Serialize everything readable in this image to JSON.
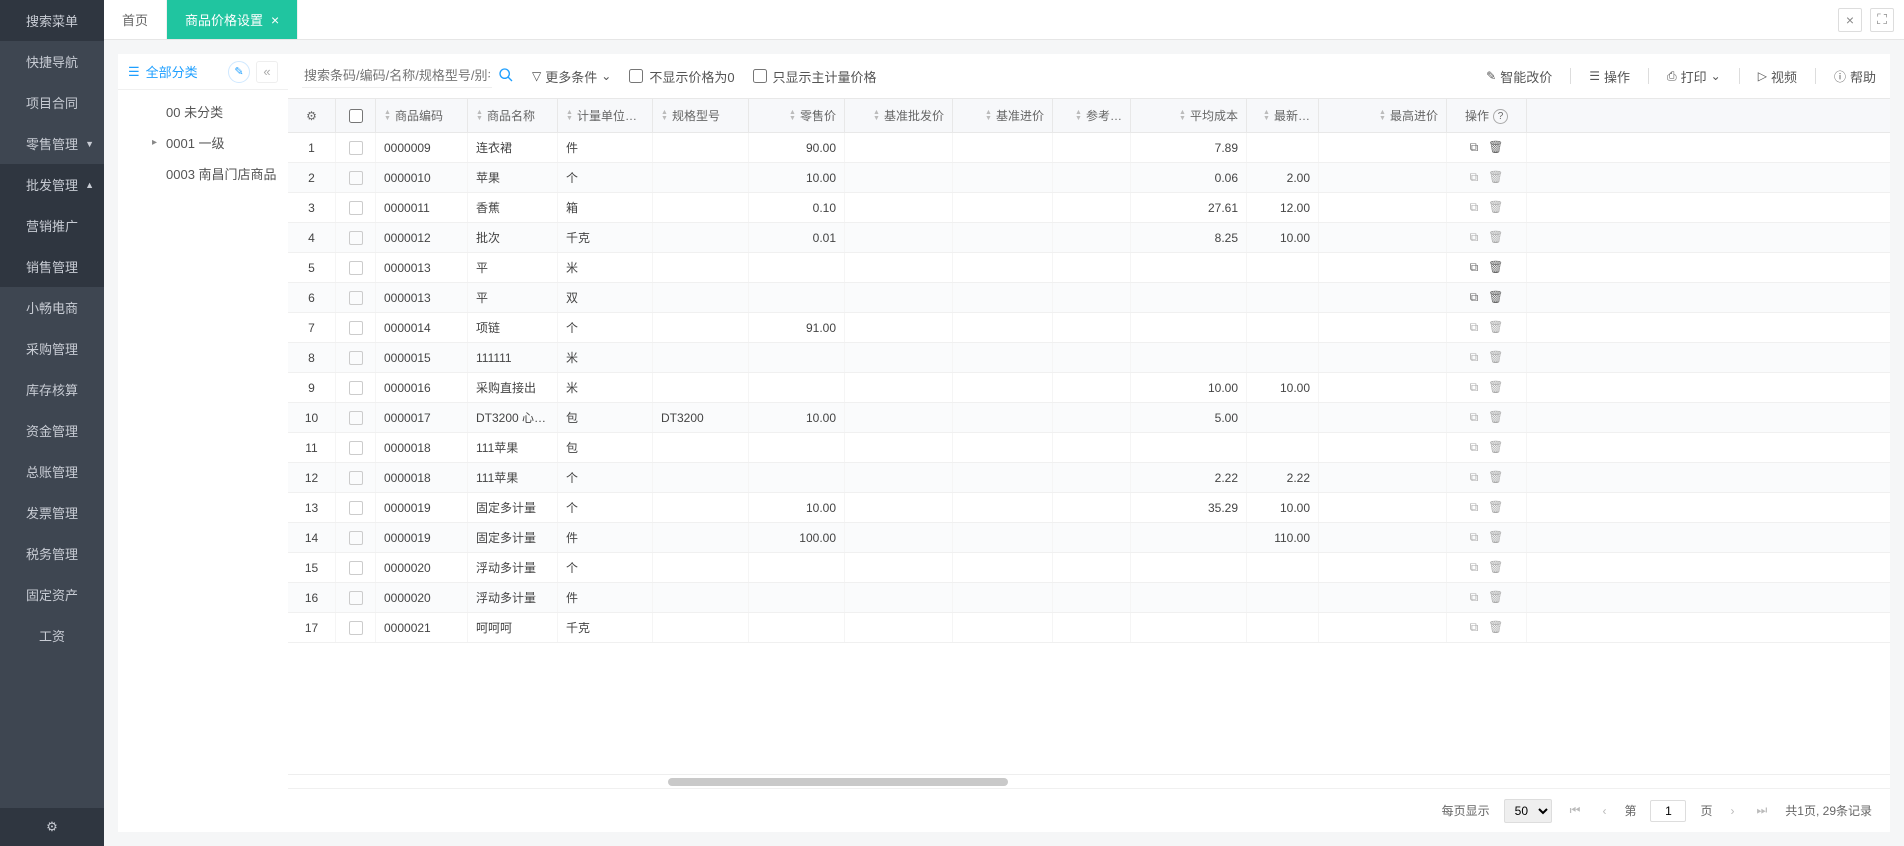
{
  "sidebar": {
    "items": [
      {
        "label": "搜索菜单",
        "arrow": ""
      },
      {
        "label": "快捷导航",
        "arrow": ""
      },
      {
        "label": "项目合同",
        "arrow": ""
      },
      {
        "label": "零售管理",
        "arrow": "▼"
      },
      {
        "label": "批发管理",
        "arrow": "▲",
        "active": true,
        "sub": [
          {
            "label": "营销推广"
          },
          {
            "label": "销售管理"
          }
        ]
      },
      {
        "label": "小畅电商",
        "arrow": ""
      },
      {
        "label": "采购管理",
        "arrow": ""
      },
      {
        "label": "库存核算",
        "arrow": ""
      },
      {
        "label": "资金管理",
        "arrow": ""
      },
      {
        "label": "总账管理",
        "arrow": ""
      },
      {
        "label": "发票管理",
        "arrow": ""
      },
      {
        "label": "税务管理",
        "arrow": ""
      },
      {
        "label": "固定资产",
        "arrow": ""
      },
      {
        "label": "工资",
        "arrow": ""
      }
    ]
  },
  "tabs": {
    "home": "首页",
    "active": "商品价格设置"
  },
  "category": {
    "head": "全部分类",
    "nodes": [
      {
        "label": "00 未分类",
        "level": "root",
        "caret": ""
      },
      {
        "label": "0001 一级",
        "level": "root",
        "caret": "▸"
      },
      {
        "label": "0003 南昌门店商品",
        "level": "root",
        "caret": ""
      }
    ]
  },
  "toolbar": {
    "search_placeholder": "搜索条码/编码/名称/规格型号/别名",
    "more": "更多条件",
    "chk1": "不显示价格为0",
    "chk2": "只显示主计量价格",
    "smart": "智能改价",
    "ops": "操作",
    "print": "打印",
    "video": "视频",
    "help": "帮助"
  },
  "table": {
    "columns": [
      "",
      "",
      "商品编码",
      "商品名称",
      "计量单位…",
      "规格型号",
      "零售价",
      "基准批发价",
      "基准进价",
      "参考…",
      "平均成本",
      "最新…",
      "最高进价",
      "操作"
    ],
    "rows": [
      {
        "n": "1",
        "code": "0000009",
        "name": "连衣裙",
        "unit": "件",
        "spec": "",
        "price": "90.00",
        "whole": "",
        "pur": "",
        "ref": "",
        "avg": "7.89",
        "new": "",
        "max": "",
        "actEnabled": true
      },
      {
        "n": "2",
        "code": "0000010",
        "name": "苹果",
        "unit": "个",
        "spec": "",
        "price": "10.00",
        "whole": "",
        "pur": "",
        "ref": "",
        "avg": "0.06",
        "new": "2.00",
        "max": "",
        "actEnabled": false
      },
      {
        "n": "3",
        "code": "0000011",
        "name": "香蕉",
        "unit": "箱",
        "spec": "",
        "price": "0.10",
        "whole": "",
        "pur": "",
        "ref": "",
        "avg": "27.61",
        "new": "12.00",
        "max": "",
        "actEnabled": false
      },
      {
        "n": "4",
        "code": "0000012",
        "name": "批次",
        "unit": "千克",
        "spec": "",
        "price": "0.01",
        "whole": "",
        "pur": "",
        "ref": "",
        "avg": "8.25",
        "new": "10.00",
        "max": "",
        "actEnabled": false
      },
      {
        "n": "5",
        "code": "0000013",
        "name": "平",
        "unit": "米",
        "spec": "",
        "price": "",
        "whole": "",
        "pur": "",
        "ref": "",
        "avg": "",
        "new": "",
        "max": "",
        "actEnabled": true
      },
      {
        "n": "6",
        "code": "0000013",
        "name": "平",
        "unit": "双",
        "spec": "",
        "price": "",
        "whole": "",
        "pur": "",
        "ref": "",
        "avg": "",
        "new": "",
        "max": "",
        "actEnabled": true
      },
      {
        "n": "7",
        "code": "0000014",
        "name": "项链",
        "unit": "个",
        "spec": "",
        "price": "91.00",
        "whole": "",
        "pur": "",
        "ref": "",
        "avg": "",
        "new": "",
        "max": "",
        "actEnabled": false
      },
      {
        "n": "8",
        "code": "0000015",
        "name": "111111",
        "unit": "米",
        "spec": "",
        "price": "",
        "whole": "",
        "pur": "",
        "ref": "",
        "avg": "",
        "new": "",
        "max": "",
        "actEnabled": false
      },
      {
        "n": "9",
        "code": "0000016",
        "name": "采购直接出",
        "unit": "米",
        "spec": "",
        "price": "",
        "whole": "",
        "pur": "",
        "ref": "",
        "avg": "10.00",
        "new": "10.00",
        "max": "",
        "actEnabled": false
      },
      {
        "n": "10",
        "code": "0000017",
        "name": "DT3200 心…",
        "unit": "包",
        "spec": "DT3200",
        "price": "10.00",
        "whole": "",
        "pur": "",
        "ref": "",
        "avg": "5.00",
        "new": "",
        "max": "",
        "actEnabled": false
      },
      {
        "n": "11",
        "code": "0000018",
        "name": "111苹果",
        "unit": "包",
        "spec": "",
        "price": "",
        "whole": "",
        "pur": "",
        "ref": "",
        "avg": "",
        "new": "",
        "max": "",
        "actEnabled": false
      },
      {
        "n": "12",
        "code": "0000018",
        "name": "111苹果",
        "unit": "个",
        "spec": "",
        "price": "",
        "whole": "",
        "pur": "",
        "ref": "",
        "avg": "2.22",
        "new": "2.22",
        "max": "",
        "actEnabled": false
      },
      {
        "n": "13",
        "code": "0000019",
        "name": "固定多计量",
        "unit": "个",
        "spec": "",
        "price": "10.00",
        "whole": "",
        "pur": "",
        "ref": "",
        "avg": "35.29",
        "new": "10.00",
        "max": "",
        "actEnabled": false
      },
      {
        "n": "14",
        "code": "0000019",
        "name": "固定多计量",
        "unit": "件",
        "spec": "",
        "price": "100.00",
        "whole": "",
        "pur": "",
        "ref": "",
        "avg": "",
        "new": "110.00",
        "max": "",
        "actEnabled": false
      },
      {
        "n": "15",
        "code": "0000020",
        "name": "浮动多计量",
        "unit": "个",
        "spec": "",
        "price": "",
        "whole": "",
        "pur": "",
        "ref": "",
        "avg": "",
        "new": "",
        "max": "",
        "actEnabled": false
      },
      {
        "n": "16",
        "code": "0000020",
        "name": "浮动多计量",
        "unit": "件",
        "spec": "",
        "price": "",
        "whole": "",
        "pur": "",
        "ref": "",
        "avg": "",
        "new": "",
        "max": "",
        "actEnabled": false
      },
      {
        "n": "17",
        "code": "0000021",
        "name": "呵呵呵",
        "unit": "千克",
        "spec": "",
        "price": "",
        "whole": "",
        "pur": "",
        "ref": "",
        "avg": "",
        "new": "",
        "max": "",
        "actEnabled": false
      }
    ]
  },
  "pager": {
    "perpage_label": "每页显示",
    "perpage": "50",
    "page_prefix": "第",
    "page": "1",
    "page_suffix": "页",
    "summary": "共1页, 29条记录"
  }
}
